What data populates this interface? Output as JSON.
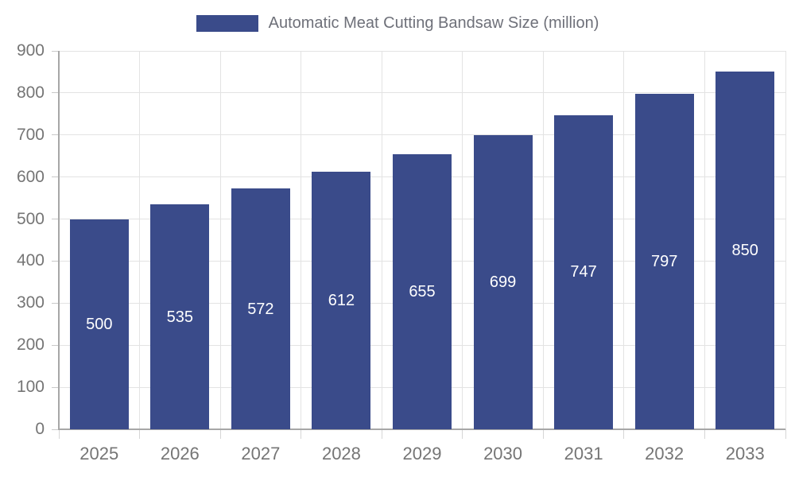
{
  "legend": {
    "label": "Automatic Meat Cutting Bandsaw Size (million)",
    "swatch_color": "#3a4b8a"
  },
  "chart_data": {
    "type": "bar",
    "title": "Automatic Meat Cutting Bandsaw Size (million)",
    "categories": [
      "2025",
      "2026",
      "2027",
      "2028",
      "2029",
      "2030",
      "2031",
      "2032",
      "2033"
    ],
    "values": [
      500,
      535,
      572,
      612,
      655,
      699,
      747,
      797,
      850
    ],
    "series_name": "Automatic Meat Cutting Bandsaw Size (million)",
    "xlabel": "",
    "ylabel": "",
    "ylim": [
      0,
      900
    ],
    "y_ticks": [
      0,
      100,
      200,
      300,
      400,
      500,
      600,
      700,
      800,
      900
    ],
    "grid": true,
    "legend_position": "top",
    "value_labels": "inside-center",
    "colors": {
      "bar": "#3a4b8a",
      "value_label": "#ffffff",
      "axis_text": "#757575",
      "legend_text": "#6e7079",
      "axis_line": "#a7a7a7",
      "gridline": "#e3e3e3"
    }
  }
}
